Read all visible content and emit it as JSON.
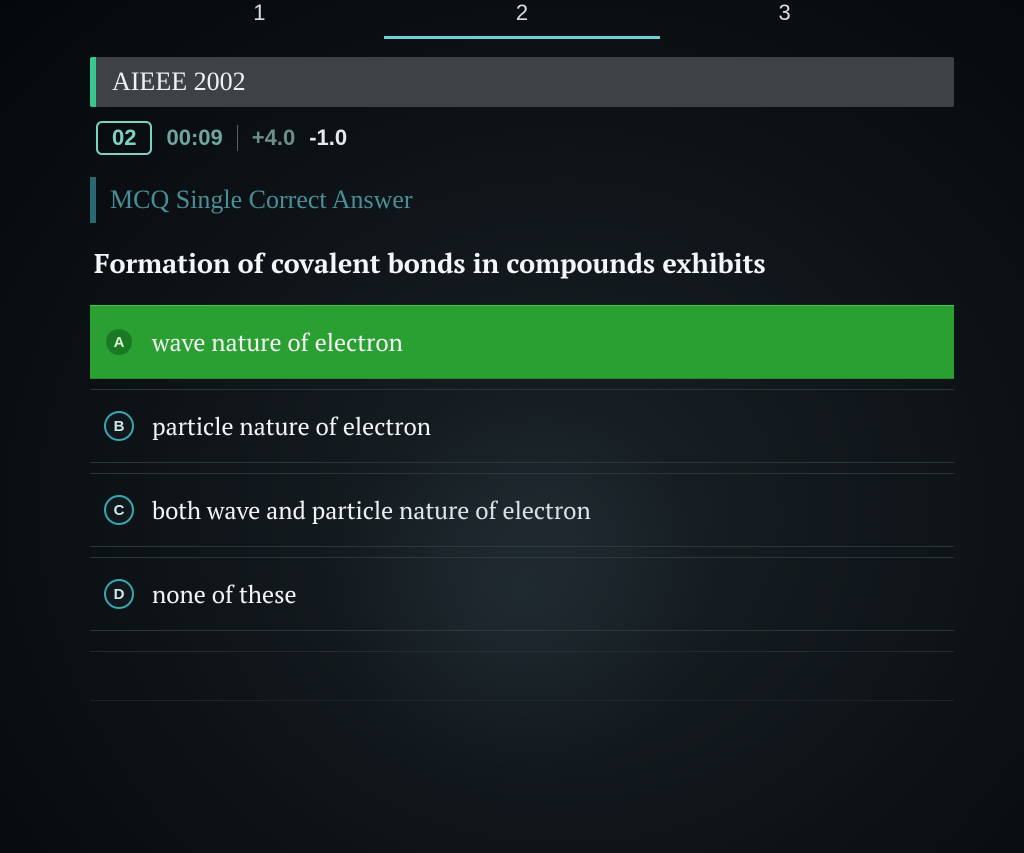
{
  "colors": {
    "background": "#0a0d12",
    "exam_bar_bg": "#3c4246",
    "exam_bar_accent": "#35c98f",
    "qnum_border": "#7dd3c0",
    "timer": "#6fa7a0",
    "qtype": "#4a8e97",
    "option_selected_bg": "#2aa032",
    "option_letter_ring": "#3aa7b0",
    "divider": "#2e3539",
    "tab_underline": "#6fd0d4"
  },
  "tabs": {
    "items": [
      "1",
      "2",
      "3"
    ],
    "active_index": 1
  },
  "exam": {
    "title": "AIEEE 2002"
  },
  "meta": {
    "question_number": "02",
    "timer": "00:09",
    "marks_positive": "+4.0",
    "marks_negative": "-1.0"
  },
  "question": {
    "type_label": "MCQ Single Correct Answer",
    "text": "Formation of covalent bonds in compounds exhibits"
  },
  "options": [
    {
      "letter": "A",
      "text": "wave nature of electron",
      "selected": true
    },
    {
      "letter": "B",
      "text": "particle nature of electron",
      "selected": false
    },
    {
      "letter": "C",
      "text": "both wave and particle nature of electron",
      "selected": false
    },
    {
      "letter": "D",
      "text": "none of these",
      "selected": false
    }
  ]
}
